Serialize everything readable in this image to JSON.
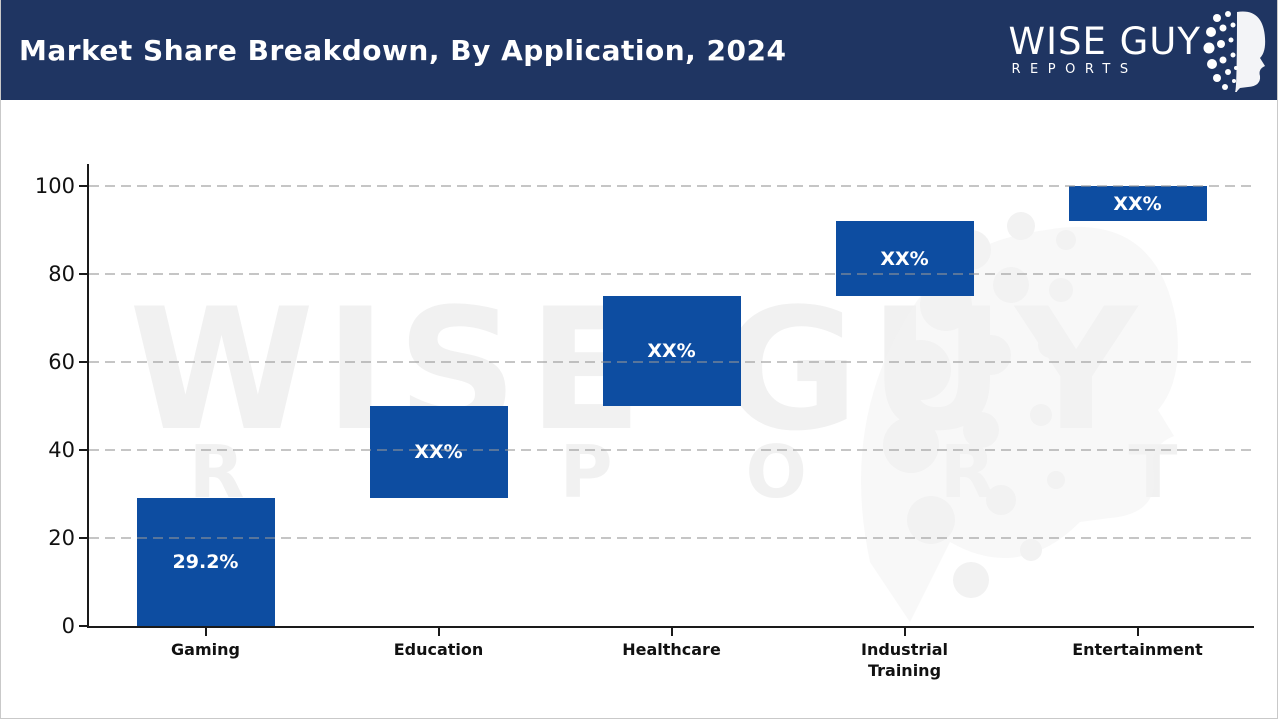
{
  "header": {
    "title": "Market Share Breakdown, By Application, 2024",
    "logo": {
      "line1": "WISE GUY",
      "line2": "REPORTS"
    }
  },
  "watermark": {
    "line1": "WISE GUY",
    "line2": "R E P O R T S"
  },
  "chart_data": {
    "type": "bar",
    "subtype": "waterfall",
    "title": "Market Share Breakdown, By Application, 2024",
    "categories": [
      "Gaming",
      "Education",
      "Healthcare",
      "Industrial\nTraining",
      "Entertainment"
    ],
    "segments": [
      {
        "category": "Gaming",
        "start": 0,
        "end": 29.2,
        "label": "29.2%"
      },
      {
        "category": "Education",
        "start": 29.2,
        "end": 50,
        "label": "XX%"
      },
      {
        "category": "Healthcare",
        "start": 50,
        "end": 75,
        "label": "XX%"
      },
      {
        "category": "Industrial Training",
        "start": 75,
        "end": 92,
        "label": "XX%"
      },
      {
        "category": "Entertainment",
        "start": 92,
        "end": 100,
        "label": "XX%"
      }
    ],
    "ylim": [
      0,
      100
    ],
    "yticks": [
      0,
      20,
      40,
      60,
      80,
      100
    ],
    "grid": "horizontal-dashed",
    "legend": "none",
    "bar_color": "#0d4da1",
    "bar_label_color": "#ffffff",
    "header_color": "#1f3562",
    "axis_color": "#1a1a1a"
  }
}
